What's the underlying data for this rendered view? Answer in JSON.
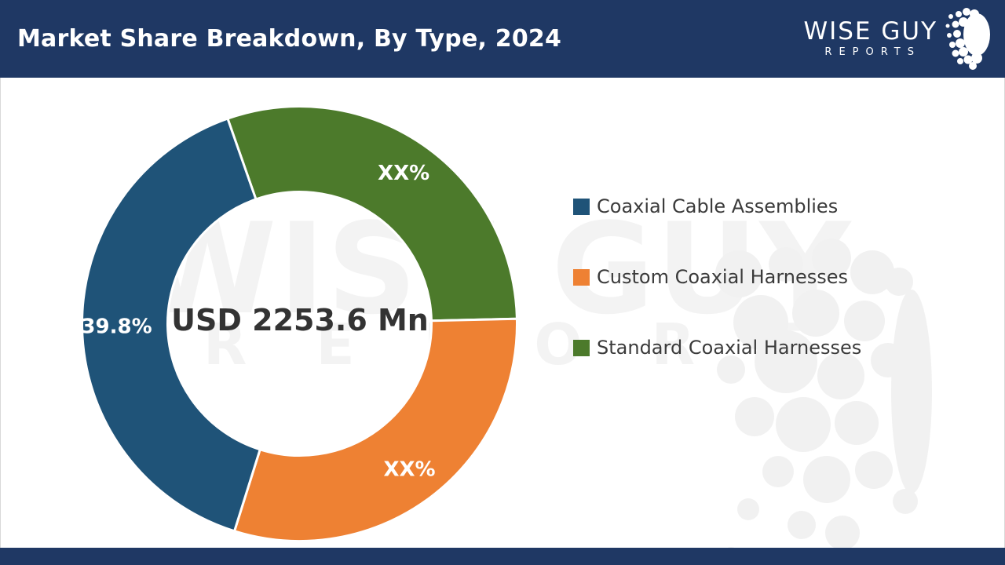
{
  "header": {
    "title": "Market Share Breakdown, By Type, 2024",
    "logo_line1": "WISE GUY",
    "logo_line2": "REPORTS"
  },
  "watermark": {
    "line1": "WISE GUY",
    "line2": "REPORT"
  },
  "chart_data": {
    "type": "pie",
    "subtype": "donut",
    "title": "Market Share Breakdown, By Type, 2024",
    "center_label": "USD 2253.6 Mn",
    "legend_position": "right",
    "start_angle_deg": -19.3,
    "direction": "clockwise-from-last-series",
    "outer_radius_px": 277,
    "inner_radius_px": 168,
    "label_radius_px": 233,
    "series": [
      {
        "name": "Coaxial Cable Assemblies",
        "value": 39.8,
        "display_label": "39.8%",
        "color": "#1F5378"
      },
      {
        "name": "Custom Coaxial Harnesses",
        "value": 30.2,
        "display_label": "XX%",
        "color": "#EE8133"
      },
      {
        "name": "Standard Coaxial Harnesses",
        "value": 30.0,
        "display_label": "XX%",
        "color": "#4C7A2B"
      }
    ]
  },
  "colors": {
    "header_bg": "#1F3864",
    "footer_bg": "#1F3864",
    "title_text": "#FFFFFF",
    "center_text": "#333333",
    "legend_text": "#3B3B3B",
    "watermark": "#F3F3F3",
    "slice_separator": "#FFFFFF"
  }
}
